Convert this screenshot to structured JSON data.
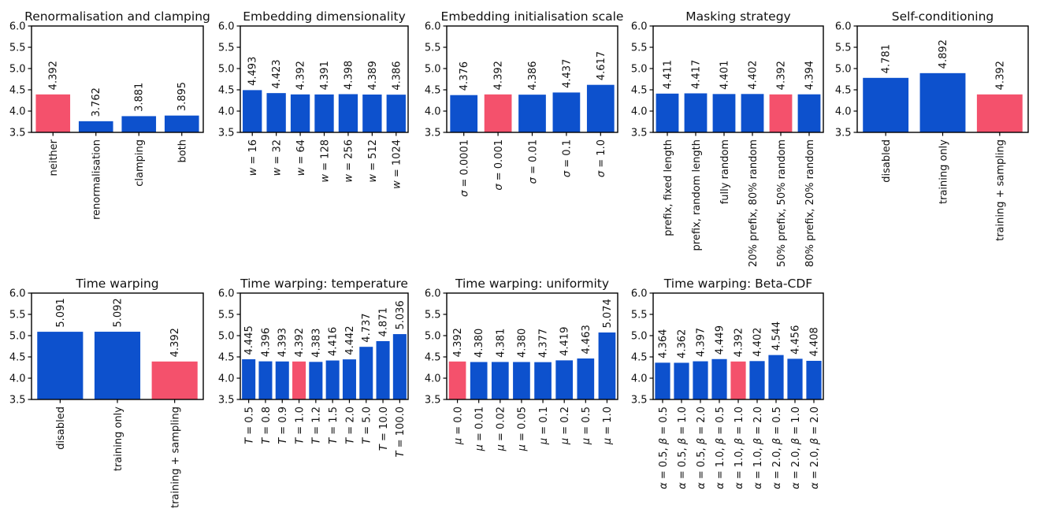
{
  "figure": {
    "background": "#ffffff",
    "bar_color": "#0d51cd",
    "highlight_color": "#f4516c",
    "axis_color": "#000000",
    "text_color": "#111111",
    "ylim": [
      3.5,
      6.0
    ],
    "yticks": [
      3.5,
      4.0,
      4.5,
      5.0,
      5.5,
      6.0
    ]
  },
  "chart_data": [
    {
      "type": "bar",
      "title": "Renormalisation and clamping",
      "categories": [
        "neither",
        "renormalisation",
        "clamping",
        "both"
      ],
      "values": [
        4.392,
        3.762,
        3.881,
        3.895
      ],
      "highlight_index": 0,
      "ylim": [
        3.5,
        6.0
      ]
    },
    {
      "type": "bar",
      "title": "Embedding dimensionality",
      "categories": [
        "w = 16",
        "w = 32",
        "w = 64",
        "w = 128",
        "w = 256",
        "w = 512",
        "w = 1024"
      ],
      "values": [
        4.493,
        4.423,
        4.392,
        4.391,
        4.398,
        4.389,
        4.386
      ],
      "highlight_index": -1,
      "ylim": [
        3.5,
        6.0
      ]
    },
    {
      "type": "bar",
      "title": "Embedding initialisation scale",
      "categories": [
        "σ = 0.0001",
        "σ = 0.001",
        "σ = 0.01",
        "σ = 0.1",
        "σ = 1.0"
      ],
      "values": [
        4.376,
        4.392,
        4.386,
        4.437,
        4.617
      ],
      "highlight_index": 1,
      "ylim": [
        3.5,
        6.0
      ]
    },
    {
      "type": "bar",
      "title": "Masking strategy",
      "categories": [
        "prefix, fixed length",
        "prefix, random length",
        "fully random",
        "20% prefix, 80% random",
        "50% prefix, 50% random",
        "80% prefix, 20% random"
      ],
      "values": [
        4.411,
        4.417,
        4.401,
        4.402,
        4.392,
        4.394
      ],
      "highlight_index": 4,
      "ylim": [
        3.5,
        6.0
      ]
    },
    {
      "type": "bar",
      "title": "Self-conditioning",
      "categories": [
        "disabled",
        "training only",
        "training + sampling"
      ],
      "values": [
        4.781,
        4.892,
        4.392
      ],
      "highlight_index": 2,
      "ylim": [
        3.5,
        6.0
      ]
    },
    {
      "type": "bar",
      "title": "Time warping",
      "categories": [
        "disabled",
        "training only",
        "training + sampling"
      ],
      "values": [
        5.091,
        5.092,
        4.392
      ],
      "highlight_index": 2,
      "ylim": [
        3.5,
        6.0
      ]
    },
    {
      "type": "bar",
      "title": "Time warping: temperature",
      "categories": [
        "T = 0.5",
        "T = 0.8",
        "T = 0.9",
        "T = 1.0",
        "T = 1.2",
        "T = 1.5",
        "T = 2.0",
        "T = 5.0",
        "T = 10.0",
        "T = 100.0"
      ],
      "values": [
        4.445,
        4.396,
        4.393,
        4.392,
        4.383,
        4.416,
        4.442,
        4.737,
        4.871,
        5.036
      ],
      "highlight_index": 3,
      "ylim": [
        3.5,
        6.0
      ]
    },
    {
      "type": "bar",
      "title": "Time warping: uniformity",
      "categories": [
        "μ = 0.0",
        "μ = 0.01",
        "μ = 0.02",
        "μ = 0.05",
        "μ = 0.1",
        "μ = 0.2",
        "μ = 0.5",
        "μ = 1.0"
      ],
      "values": [
        4.392,
        4.38,
        4.381,
        4.38,
        4.377,
        4.419,
        4.463,
        5.074
      ],
      "highlight_index": 0,
      "ylim": [
        3.5,
        6.0
      ]
    },
    {
      "type": "bar",
      "title": "Time warping: Beta-CDF",
      "categories": [
        "α = 0.5, β = 0.5",
        "α = 0.5, β = 1.0",
        "α = 0.5, β = 2.0",
        "α = 1.0, β = 0.5",
        "α = 1.0, β = 1.0",
        "α = 1.0, β = 2.0",
        "α = 2.0, β = 0.5",
        "α = 2.0, β = 1.0",
        "α = 2.0, β = 2.0"
      ],
      "values": [
        4.364,
        4.362,
        4.397,
        4.449,
        4.392,
        4.402,
        4.544,
        4.456,
        4.408
      ],
      "highlight_index": 4,
      "ylim": [
        3.5,
        6.0
      ]
    }
  ]
}
